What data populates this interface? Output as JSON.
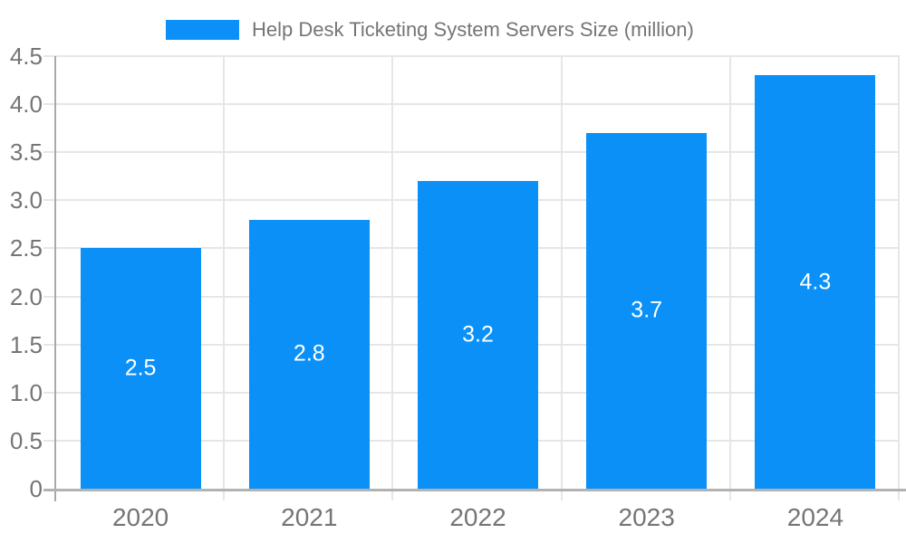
{
  "chart_data": {
    "type": "bar",
    "title": "",
    "legend": {
      "label": "Help Desk Ticketing System Servers Size (million)",
      "position": "top"
    },
    "categories": [
      "2020",
      "2021",
      "2022",
      "2023",
      "2024"
    ],
    "series": [
      {
        "name": "Help Desk Ticketing System Servers Size (million)",
        "values": [
          2.5,
          2.8,
          3.2,
          3.7,
          4.3
        ]
      }
    ],
    "bar_value_labels": [
      "2.5",
      "2.8",
      "3.2",
      "3.7",
      "4.3"
    ],
    "xlabel": "",
    "ylabel": "",
    "ylim": [
      0,
      4.5
    ],
    "ytick_step": 0.5,
    "ytick_labels": [
      "0",
      "0.5",
      "1.0",
      "1.5",
      "2.0",
      "2.5",
      "3.0",
      "3.5",
      "4.0",
      "4.5"
    ],
    "grid": {
      "horizontal": true,
      "vertical_column_boundaries": true
    },
    "colors": {
      "bar": "#0A90F7",
      "gridline": "#E6E6E6",
      "axis": "#A9A9A9",
      "baseline": "#B2B2B2",
      "tick_label": "#757575",
      "legend_text": "#757575",
      "bar_value_text": "#FFFFFF",
      "background": "#FFFFFF"
    }
  }
}
